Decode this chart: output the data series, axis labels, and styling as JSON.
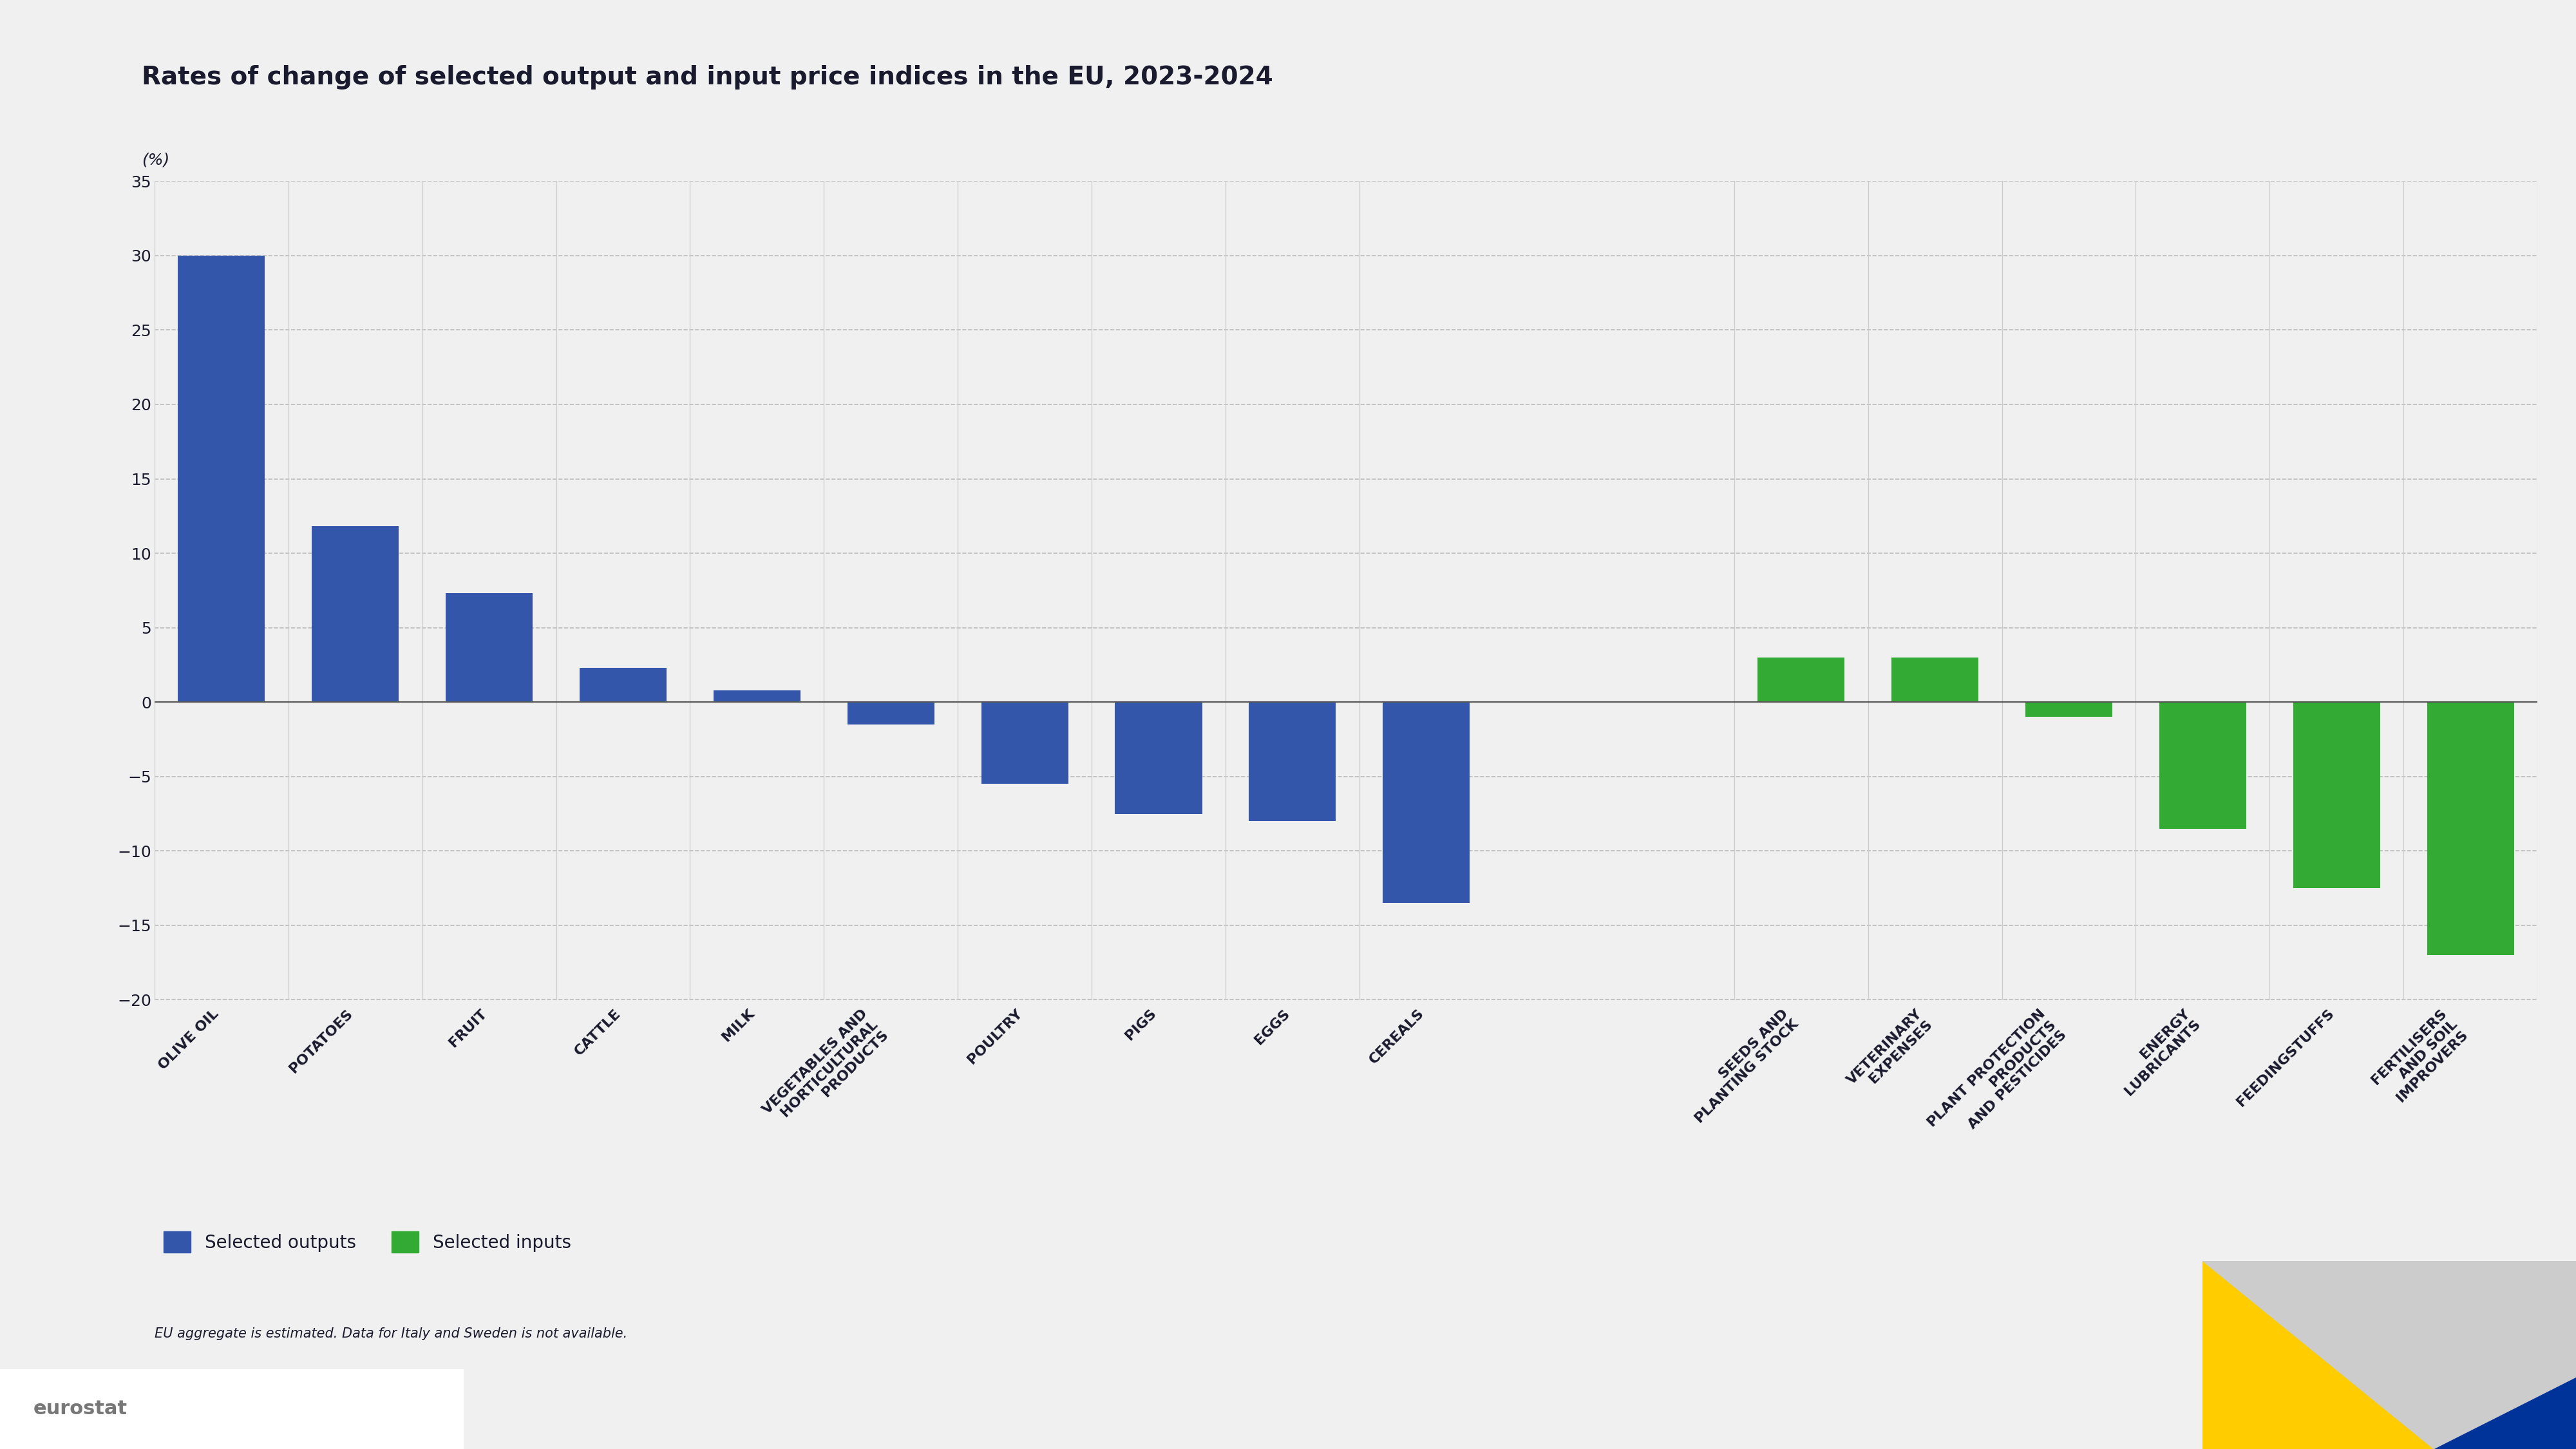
{
  "title": "Rates of change of selected output and input price indices in the EU, 2023-2024",
  "ylabel": "(%)",
  "footnote": "EU aggregate is estimated. Data for Italy and Sweden is not available.",
  "legend": [
    "Selected outputs",
    "Selected inputs"
  ],
  "legend_colors": [
    "#3355aa",
    "#33aa33"
  ],
  "background_color": "#f0f0f0",
  "plot_background_color": "#f0f0f0",
  "ylim": [
    -20,
    35
  ],
  "yticks": [
    -20,
    -15,
    -10,
    -5,
    0,
    5,
    10,
    15,
    20,
    25,
    30,
    35
  ],
  "output_categories": [
    "OLIVE OIL",
    "POTATOES",
    "FRUIT",
    "CATTLE",
    "MILK",
    "VEGETABLES AND\nHORTICULTURAL\nPRODUCTS",
    "POULTRY",
    "PIGS",
    "EGGS",
    "CEREALS"
  ],
  "output_values": [
    30.0,
    11.8,
    7.3,
    2.3,
    0.8,
    -1.5,
    -5.5,
    -7.5,
    -8.0,
    -13.5
  ],
  "input_categories": [
    "SEEDS AND\nPLANTING STOCK",
    "VETERINARY\nEXPENSES",
    "PLANT PROTECTION\nPRODUCTS\nAND PESTICIDES",
    "ENERGY\nLUBRICANTS",
    "FEEDINGSTUFFS",
    "FERTILISERS\nAND SOIL\nIMPROVERS"
  ],
  "input_values": [
    3.0,
    3.0,
    -1.0,
    -8.5,
    -12.5,
    -17.0
  ],
  "output_color": "#3355aa",
  "input_color": "#33aa33",
  "title_fontsize": 28,
  "tick_fontsize": 16,
  "ytick_fontsize": 18,
  "label_fontsize": 18,
  "footnote_fontsize": 15,
  "legend_fontsize": 20
}
